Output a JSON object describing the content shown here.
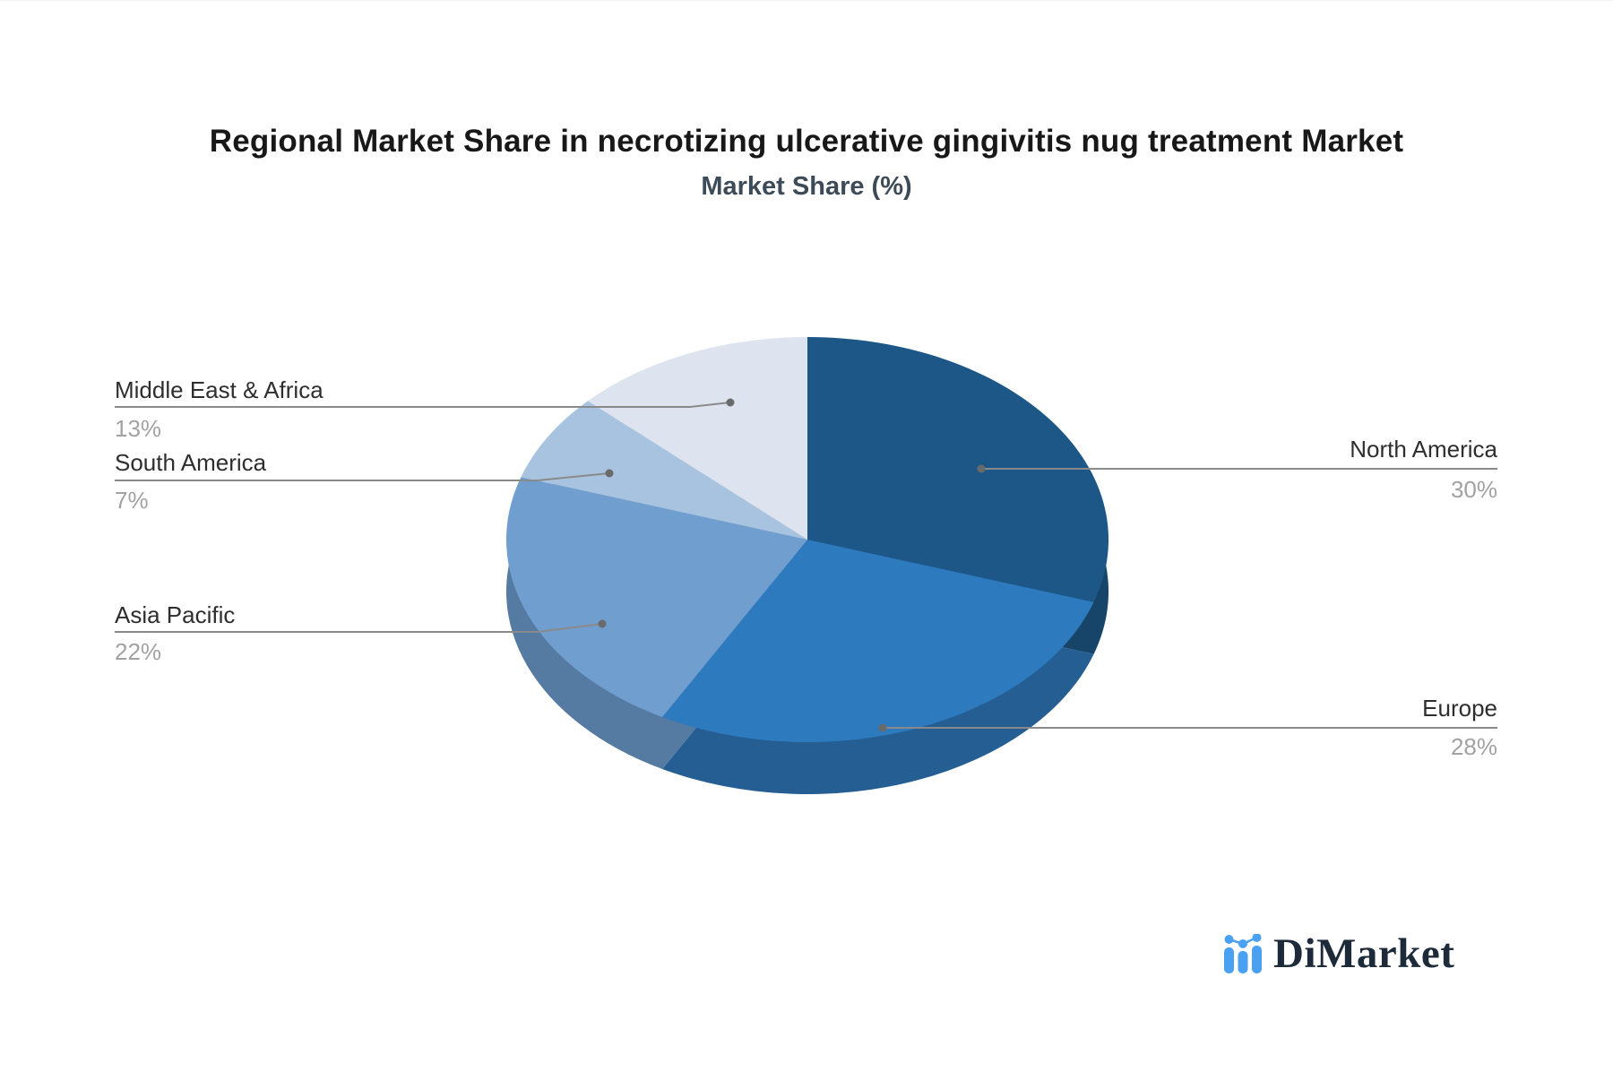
{
  "header": {
    "title": "Regional Market Share in necrotizing ulcerative gingivitis nug treatment Market",
    "subtitle": "Market Share (%)"
  },
  "chart_data": {
    "type": "pie",
    "style": "3d-pie",
    "title": "Regional Market Share in necrotizing ulcerative gingivitis nug treatment Market",
    "subtitle": "Market Share (%)",
    "unit": "%",
    "start_angle_deg": -90,
    "direction": "clockwise",
    "legend_position": "none",
    "labels": "outside-with-connectors",
    "slices": [
      {
        "label": "North America",
        "value": 30,
        "pct_label": "30%",
        "color": "#1d5788",
        "side_color": "#174569"
      },
      {
        "label": "Europe",
        "value": 28,
        "pct_label": "28%",
        "color": "#2e7abf",
        "side_color": "#245e93"
      },
      {
        "label": "Asia Pacific",
        "value": 22,
        "pct_label": "22%",
        "color": "#6f9ecf",
        "side_color": "#567ba2"
      },
      {
        "label": "South America",
        "value": 7,
        "pct_label": "7%",
        "color": "#a7c3e0",
        "side_color": "#8096ac"
      },
      {
        "label": "Middle East & Africa",
        "value": 13,
        "pct_label": "13%",
        "color": "#dde4ef",
        "side_color": "#aab0ba"
      }
    ]
  },
  "colors": {
    "title": "#181818",
    "subtitle": "#3d4b59",
    "label_text": "#2e2e2e",
    "pct_text": "#a2a2a2",
    "connector_line": "#8a8a8a",
    "connector_dot": "#6a6a6a"
  },
  "logo": {
    "text": "DiMarket",
    "icon": "bar-line-chart-icon",
    "icon_color": "#4aa1f2",
    "text_color": "#1d2a3a"
  }
}
